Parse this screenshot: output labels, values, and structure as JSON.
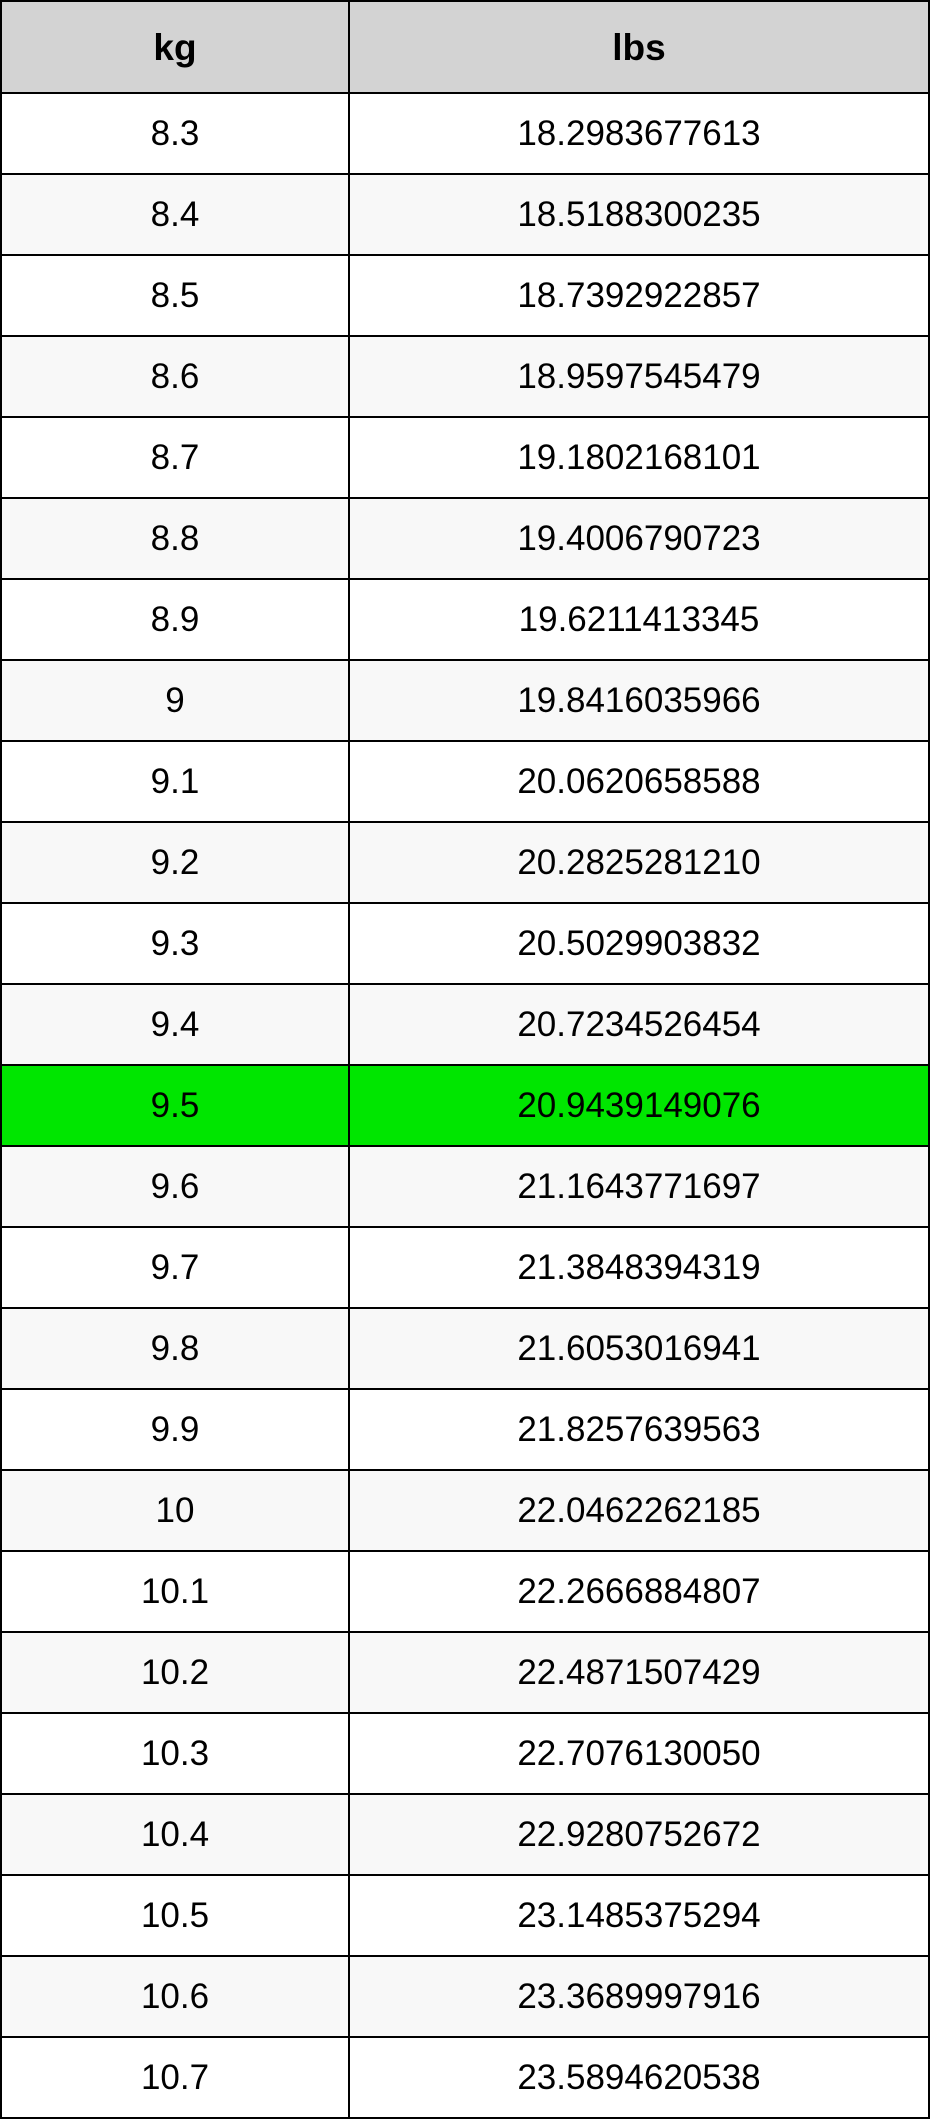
{
  "table": {
    "type": "table",
    "columns": [
      {
        "label": "kg",
        "width_pct": 37.5
      },
      {
        "label": "lbs",
        "width_pct": 62.5
      }
    ],
    "header_bg": "#d3d3d3",
    "header_fontsize": 37,
    "header_fontweight": "bold",
    "cell_fontsize": 35,
    "border_color": "#000000",
    "highlight_bg": "#00e600",
    "odd_row_bg": "#ffffff",
    "even_row_bg": "#f8f8f8",
    "highlight_index": 12,
    "rows": [
      {
        "kg": "8.3",
        "lbs": "18.2983677613"
      },
      {
        "kg": "8.4",
        "lbs": "18.5188300235"
      },
      {
        "kg": "8.5",
        "lbs": "18.7392922857"
      },
      {
        "kg": "8.6",
        "lbs": "18.9597545479"
      },
      {
        "kg": "8.7",
        "lbs": "19.1802168101"
      },
      {
        "kg": "8.8",
        "lbs": "19.4006790723"
      },
      {
        "kg": "8.9",
        "lbs": "19.6211413345"
      },
      {
        "kg": "9",
        "lbs": "19.8416035966"
      },
      {
        "kg": "9.1",
        "lbs": "20.0620658588"
      },
      {
        "kg": "9.2",
        "lbs": "20.2825281210"
      },
      {
        "kg": "9.3",
        "lbs": "20.5029903832"
      },
      {
        "kg": "9.4",
        "lbs": "20.7234526454"
      },
      {
        "kg": "9.5",
        "lbs": "20.9439149076"
      },
      {
        "kg": "9.6",
        "lbs": "21.1643771697"
      },
      {
        "kg": "9.7",
        "lbs": "21.3848394319"
      },
      {
        "kg": "9.8",
        "lbs": "21.6053016941"
      },
      {
        "kg": "9.9",
        "lbs": "21.8257639563"
      },
      {
        "kg": "10",
        "lbs": "22.0462262185"
      },
      {
        "kg": "10.1",
        "lbs": "22.2666884807"
      },
      {
        "kg": "10.2",
        "lbs": "22.4871507429"
      },
      {
        "kg": "10.3",
        "lbs": "22.7076130050"
      },
      {
        "kg": "10.4",
        "lbs": "22.9280752672"
      },
      {
        "kg": "10.5",
        "lbs": "23.1485375294"
      },
      {
        "kg": "10.6",
        "lbs": "23.3689997916"
      },
      {
        "kg": "10.7",
        "lbs": "23.5894620538"
      }
    ]
  }
}
